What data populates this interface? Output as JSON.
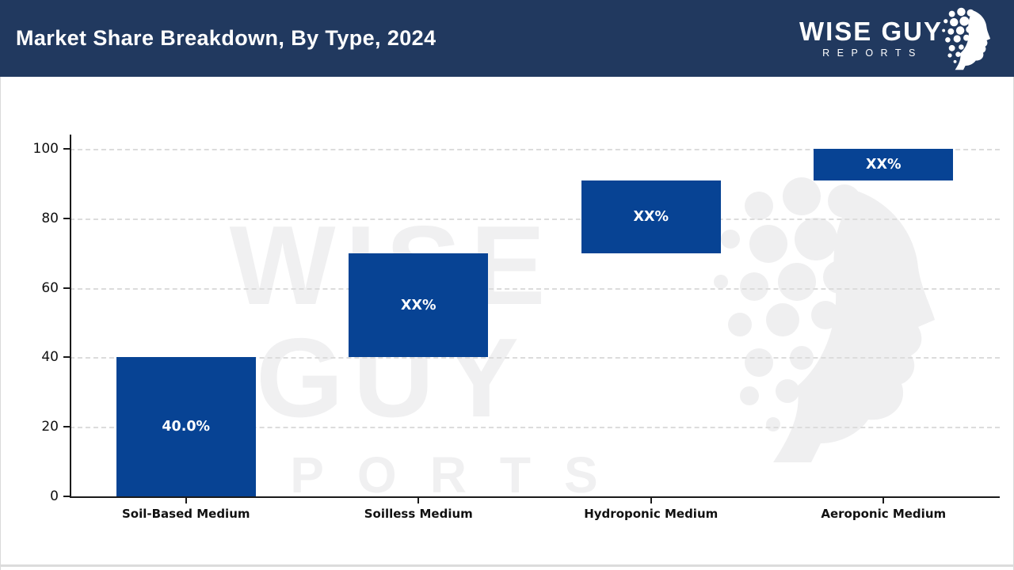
{
  "header": {
    "title": "Market Share Breakdown, By Type, 2024",
    "bg_color": "#21395f"
  },
  "logo": {
    "line1": "WISE GUY",
    "line2": "REPORTS"
  },
  "watermark": {
    "line1": "WISE GUY",
    "line2": "REPORTS"
  },
  "chart_data": {
    "type": "bar",
    "subtype": "waterfall",
    "title": "Market Share Breakdown, By Type, 2024",
    "xlabel": "",
    "ylabel": "",
    "ylim": [
      0,
      100
    ],
    "yticks": [
      0,
      20,
      40,
      60,
      80,
      100
    ],
    "grid": true,
    "legend": false,
    "bar_color": "#074394",
    "bar_label_color": "#ffffff",
    "categories": [
      "Soil-Based Medium",
      "Soilless Medium",
      "Hydroponic Medium",
      "Aeroponic Medium"
    ],
    "segments": [
      {
        "category": "Soil-Based Medium",
        "start": 0,
        "end": 40,
        "value": 40,
        "label": "40.0%"
      },
      {
        "category": "Soilless Medium",
        "start": 40,
        "end": 70,
        "value": 30,
        "label": "XX%"
      },
      {
        "category": "Hydroponic Medium",
        "start": 70,
        "end": 91,
        "value": 21,
        "label": "XX%"
      },
      {
        "category": "Aeroponic Medium",
        "start": 91,
        "end": 100,
        "value": 9,
        "label": "XX%"
      }
    ]
  }
}
